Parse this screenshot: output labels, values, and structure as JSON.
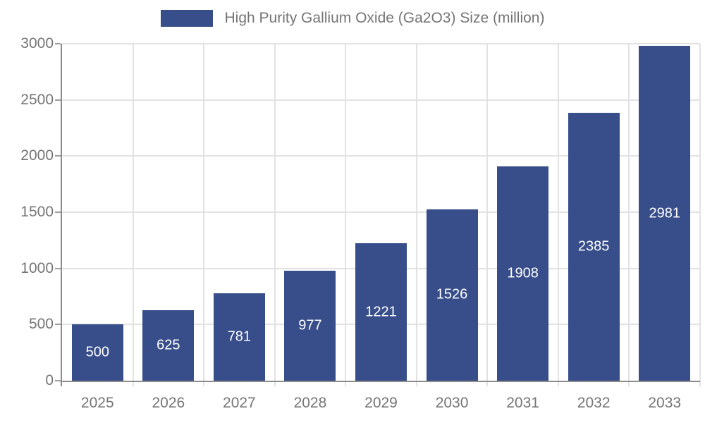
{
  "legend": {
    "label": "High Purity Gallium Oxide (Ga2O3) Size (million)",
    "swatch_color": "#384e8a"
  },
  "chart_data": {
    "type": "bar",
    "title": "High Purity Gallium Oxide (Ga2O3) Size (million)",
    "categories": [
      "2025",
      "2026",
      "2027",
      "2028",
      "2029",
      "2030",
      "2031",
      "2032",
      "2033"
    ],
    "values": [
      500,
      625,
      781,
      977,
      1221,
      1526,
      1908,
      2385,
      2981
    ],
    "xlabel": "",
    "ylabel": "",
    "ylim": [
      0,
      3000
    ],
    "yticks": [
      0,
      500,
      1000,
      1500,
      2000,
      2500,
      3000
    ],
    "grid": true,
    "legend_position": "top",
    "bar_color": "#384e8a",
    "value_label_color": "#ffffff"
  },
  "colors": {
    "grid": "#e2e2e2",
    "axis": "#8c8c8c",
    "tick_text": "#757575"
  }
}
